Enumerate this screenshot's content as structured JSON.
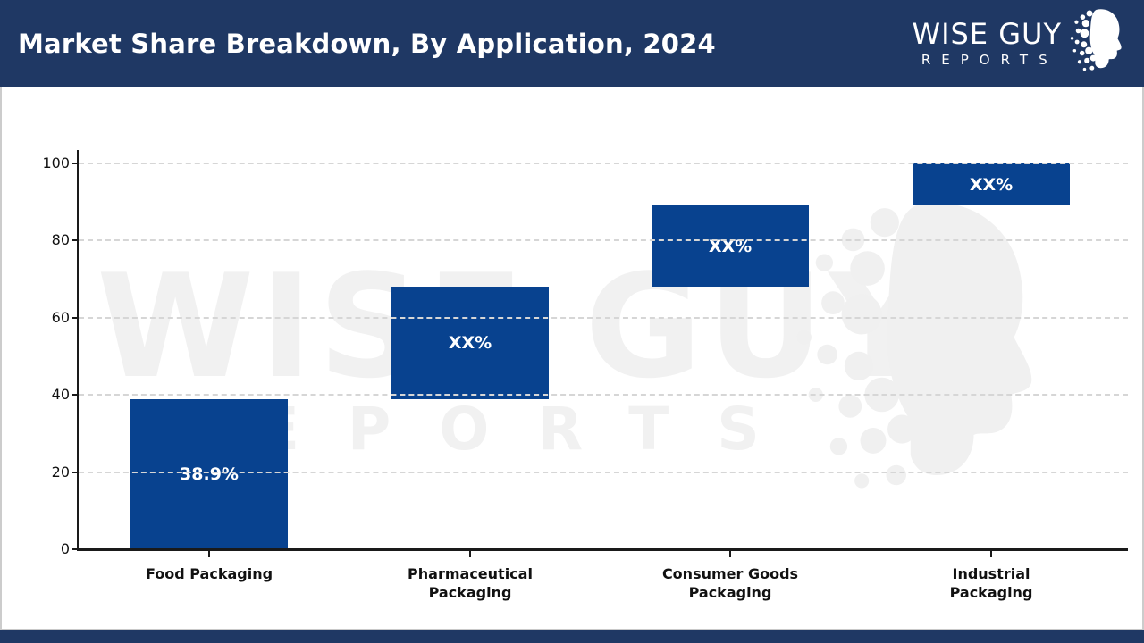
{
  "header": {
    "title": "Market Share Breakdown, By Application, 2024"
  },
  "logo": {
    "line1": "WISE GUY",
    "line2": "REPORTS"
  },
  "watermark": {
    "line1": "WISE GUY",
    "line2": "REPORTS"
  },
  "chart_data": {
    "type": "bar",
    "subtype": "waterfall",
    "title": "Market Share Breakdown, By Application, 2024",
    "categories": [
      [
        "Food Packaging"
      ],
      [
        "Pharmaceutical",
        "Packaging"
      ],
      [
        "Consumer Goods",
        "Packaging"
      ],
      [
        "Industrial",
        "Packaging"
      ]
    ],
    "segments": [
      {
        "category": "Food Packaging",
        "start": 0,
        "end": 38.9,
        "label": "38.9%"
      },
      {
        "category": "Pharmaceutical Packaging",
        "start": 38.9,
        "end": 68.1,
        "label": "XX%"
      },
      {
        "category": "Consumer Goods Packaging",
        "start": 68.1,
        "end": 89.1,
        "label": "XX%"
      },
      {
        "category": "Industrial Packaging",
        "start": 89.1,
        "end": 100,
        "label": "XX%"
      }
    ],
    "yticks": [
      0,
      20,
      40,
      60,
      80,
      100
    ],
    "ylim": [
      0,
      104
    ],
    "xlabel": "",
    "ylabel": "",
    "grid": "horizontal-dashed",
    "legend": false,
    "colors": {
      "bar": "#08428f",
      "header_bg": "#1f3864",
      "footer_bg": "#1f3864",
      "axis": "#1a1a1a",
      "grid": "#d6d6d6",
      "watermark": "#f1f1f1",
      "bar_label_text": "#ffffff",
      "category_text": "#111111"
    }
  }
}
